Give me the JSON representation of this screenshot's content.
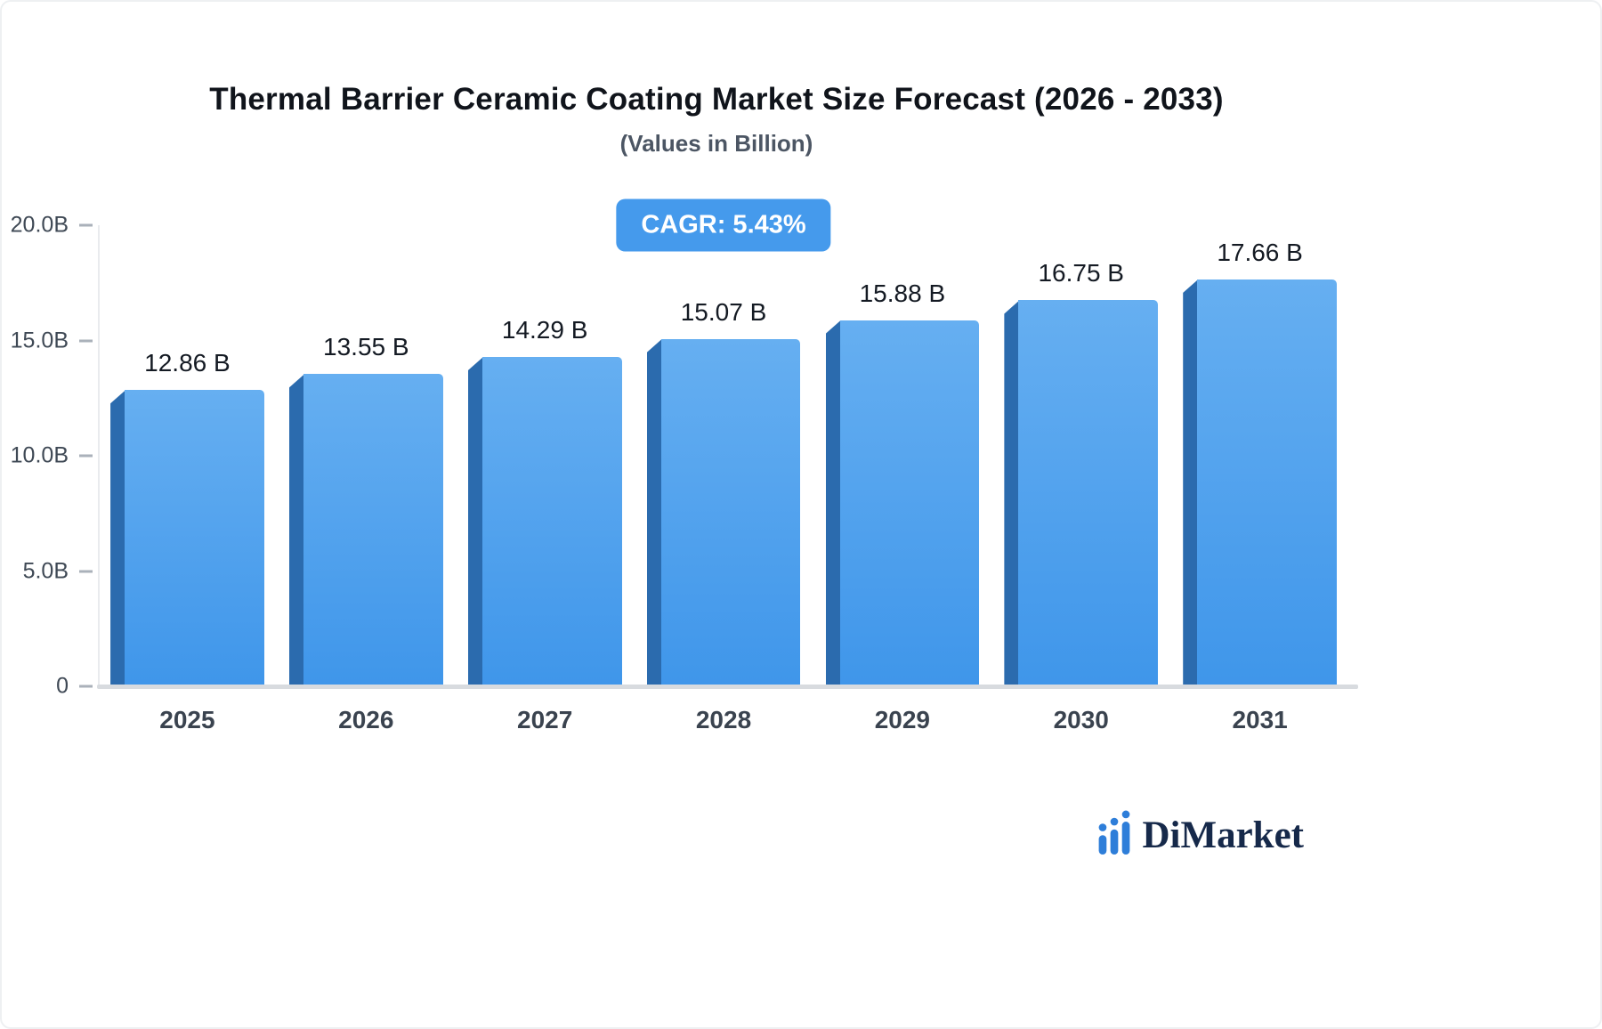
{
  "page": {
    "background": "#ffffff",
    "border_color": "#eef0f2"
  },
  "header": {
    "title": "Thermal Barrier Ceramic Coating Market Size Forecast (2026 - 2033)",
    "subtitle": "(Values in Billion)"
  },
  "badge": {
    "label": "CAGR: 5.43%",
    "background": "#459aec",
    "text_color": "#ffffff"
  },
  "chart_data": {
    "type": "bar",
    "title": "Thermal Barrier Ceramic Coating Market Size Forecast (2026 - 2033)",
    "subtitle": "(Values in Billion)",
    "categories": [
      "2025",
      "2026",
      "2027",
      "2028",
      "2029",
      "2030",
      "2031"
    ],
    "values": [
      12.86,
      13.55,
      14.29,
      15.07,
      15.88,
      16.75,
      17.66
    ],
    "value_labels": [
      "12.86 B",
      "13.55 B",
      "14.29 B",
      "15.07 B",
      "15.88 B",
      "16.75 B",
      "17.66 B"
    ],
    "xlabel": "",
    "ylabel": "",
    "ylim": [
      0,
      20
    ],
    "yticks": [
      {
        "value": 0,
        "label": "0"
      },
      {
        "value": 5,
        "label": "5.0B"
      },
      {
        "value": 10,
        "label": "10.0B"
      },
      {
        "value": 15,
        "label": "15.0B"
      },
      {
        "value": 20,
        "label": "20.0B"
      }
    ],
    "grid": false,
    "legend": "none",
    "bar_style": {
      "face_top": "#66aff1",
      "face_bottom": "#3f96ea",
      "side": "#2b6bae"
    }
  },
  "logo": {
    "text": "DiMarket",
    "icon": "bar-chart-icon",
    "icon_color": "#2e7ed9",
    "text_color": "#16294a"
  }
}
